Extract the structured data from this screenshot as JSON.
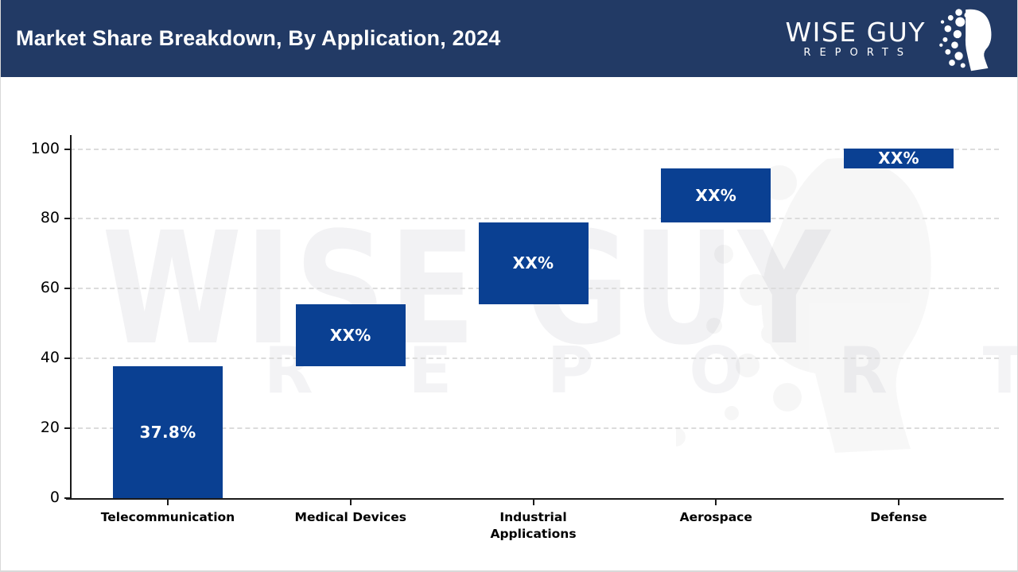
{
  "header": {
    "title": "Market Share Breakdown, By Application, 2024",
    "logo": {
      "line1": "WISE GUY",
      "line2": "REPORTS"
    }
  },
  "watermark": {
    "line1": "WISE GUY",
    "line2": "REPORTS"
  },
  "colors": {
    "header_bg": "#223A65",
    "bar": "#0A4092",
    "grid": "#DCDCDC",
    "axis": "#1A1A1A",
    "bar_label_text": "#FFFFFF"
  },
  "chart_data": {
    "type": "bar",
    "subtype": "waterfall",
    "title": "Market Share Breakdown, By Application, 2024",
    "xlabel": "",
    "ylabel": "",
    "categories": [
      "Telecommunication",
      "Medical Devices",
      "Industrial Applications",
      "Aerospace",
      "Defense"
    ],
    "segments": [
      {
        "category": "Telecommunication",
        "start": 0,
        "end": 37.8,
        "label": "37.8%"
      },
      {
        "category": "Medical Devices",
        "start": 37.8,
        "end": 55.5,
        "label": "XX%"
      },
      {
        "category": "Industrial Applications",
        "start": 55.5,
        "end": 79.0,
        "label": "XX%"
      },
      {
        "category": "Aerospace",
        "start": 79.0,
        "end": 94.5,
        "label": "XX%"
      },
      {
        "category": "Defense",
        "start": 94.5,
        "end": 100.2,
        "label": "XX%"
      }
    ],
    "y_ticks": [
      0,
      20,
      40,
      60,
      80,
      100
    ],
    "ylim": [
      0,
      104
    ],
    "grid": "horizontal-dashed",
    "legend": "none"
  }
}
